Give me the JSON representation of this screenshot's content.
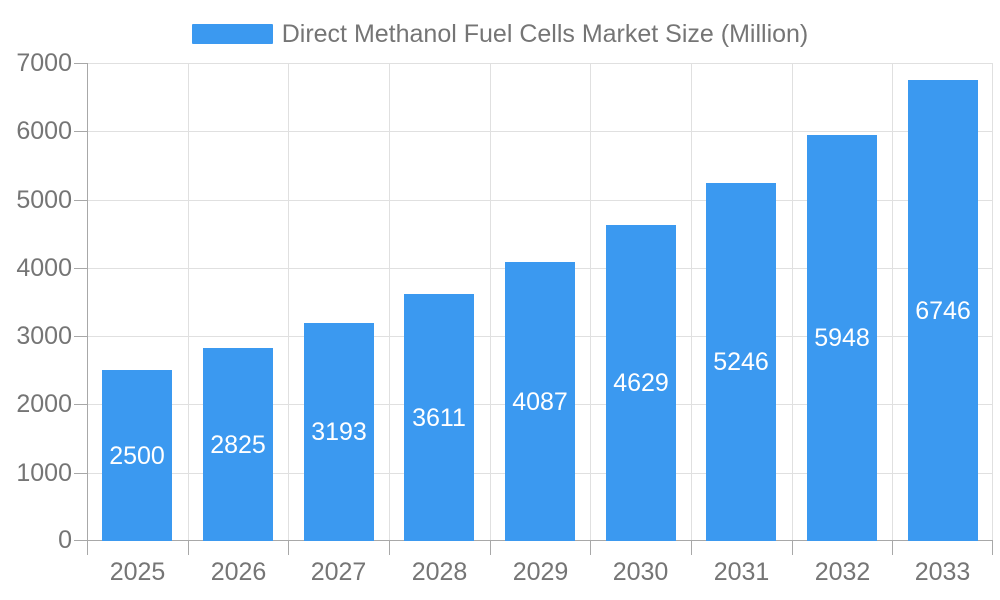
{
  "legend": {
    "label": "Direct Methanol Fuel Cells Market Size (Million)"
  },
  "chart_data": {
    "type": "bar",
    "title": "Direct Methanol Fuel Cells Market Size (Million)",
    "categories": [
      "2025",
      "2026",
      "2027",
      "2028",
      "2029",
      "2030",
      "2031",
      "2032",
      "2033"
    ],
    "values": [
      2500,
      2825,
      3193,
      3611,
      4087,
      4629,
      5246,
      5948,
      6746
    ],
    "xlabel": "",
    "ylabel": "",
    "ylim": [
      0,
      7000
    ],
    "ytick_step": 1000,
    "yticks": [
      "0",
      "1000",
      "2000",
      "3000",
      "4000",
      "5000",
      "6000",
      "7000"
    ],
    "grid": true,
    "legend_position": "top",
    "bar_labels_inside": true,
    "colors": {
      "bar": "#3B99F0",
      "bar_label": "#FFFFFF",
      "grid": "#E0E0E0",
      "axis": "#A8A8A8",
      "text": "#757575"
    }
  }
}
